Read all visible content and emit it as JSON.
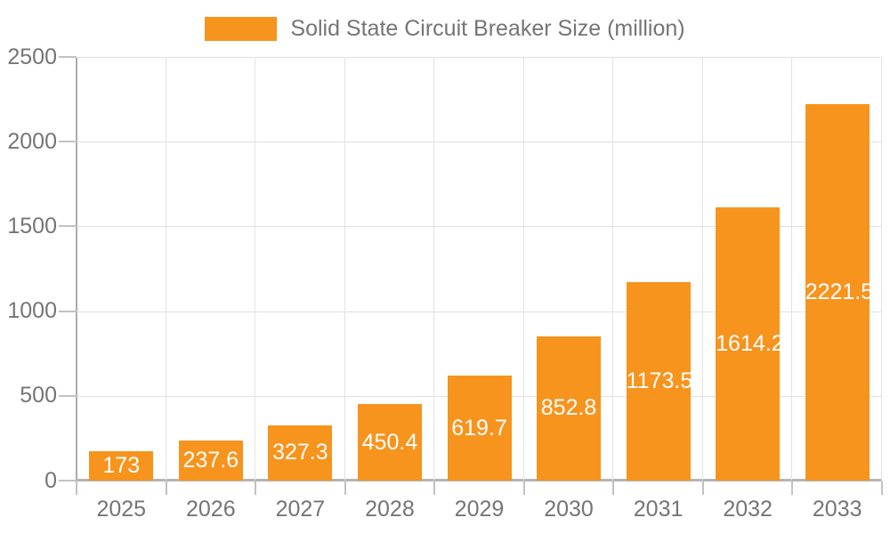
{
  "legend": {
    "label": "Solid State Circuit Breaker Size (million)"
  },
  "chart_data": {
    "type": "bar",
    "title": "",
    "xlabel": "",
    "ylabel": "",
    "categories": [
      "2025",
      "2026",
      "2027",
      "2028",
      "2029",
      "2030",
      "2031",
      "2032",
      "2033"
    ],
    "series": [
      {
        "name": "Solid State Circuit Breaker Size (million)",
        "values": [
          173,
          237.6,
          327.3,
          450.4,
          619.7,
          852.8,
          1173.5,
          1614.2,
          2221.5
        ],
        "value_labels": [
          "173",
          "237.6",
          "327.3",
          "450.4",
          "619.7",
          "852.8",
          "1173.5",
          "1614.2",
          "2221.5"
        ]
      }
    ],
    "ylim": [
      0,
      2500
    ],
    "yticks": [
      0,
      500,
      1000,
      1500,
      2000,
      2500
    ],
    "grid": true,
    "legend_position": "top-center",
    "bar_color": "#F7941E",
    "bar_value_label_color": "#FFFFFF",
    "axis_text_color": "#757575",
    "gridline_color": "#E0E0E0",
    "axis_line_color": "#ABABAB"
  }
}
